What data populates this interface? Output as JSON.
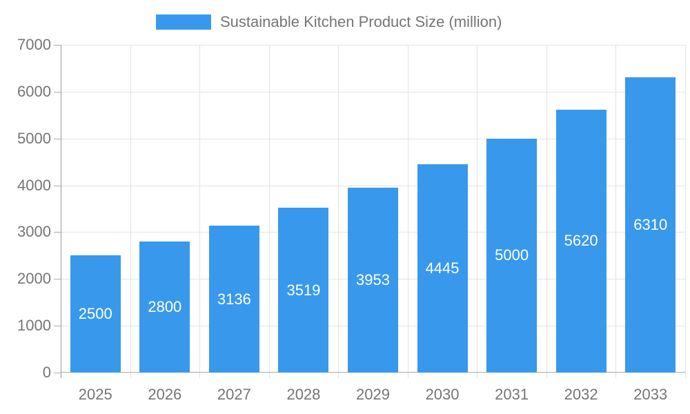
{
  "chart_data": {
    "type": "bar",
    "title": "Sustainable Kitchen Product Size (million)",
    "legend": [
      "Sustainable Kitchen Product Size (million)"
    ],
    "legend_position": "top",
    "categories": [
      "2025",
      "2026",
      "2027",
      "2028",
      "2029",
      "2030",
      "2031",
      "2032",
      "2033"
    ],
    "series": [
      {
        "name": "Sustainable Kitchen Product Size (million)",
        "values": [
          2500,
          2800,
          3136,
          3519,
          3953,
          4445,
          5000,
          5620,
          6310
        ]
      }
    ],
    "data_labels_shown": true,
    "xlabel": "",
    "ylabel": "",
    "ylim": [
      0,
      7000
    ],
    "yticks": [
      0,
      1000,
      2000,
      3000,
      4000,
      5000,
      6000,
      7000
    ],
    "grid": true,
    "colors": {
      "bar": "#3899EC",
      "bar_value_text": "#FFFFFF",
      "axis_text": "#757575",
      "gridline": "#E2E2E2",
      "axis_line": "#ABABAB",
      "y_axis_line": "#9A9A9A"
    }
  }
}
